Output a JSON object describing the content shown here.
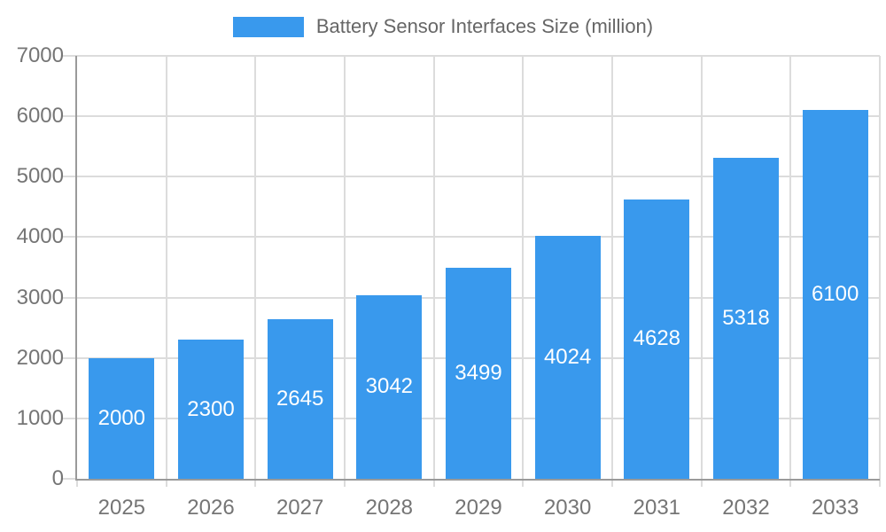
{
  "legend": {
    "label": "Battery Sensor Interfaces Size (million)"
  },
  "chart_data": {
    "type": "bar",
    "title": "Battery Sensor Interfaces Size (million)",
    "categories": [
      "2025",
      "2026",
      "2027",
      "2028",
      "2029",
      "2030",
      "2031",
      "2032",
      "2033"
    ],
    "values": [
      2000,
      2300,
      2645,
      3042,
      3499,
      4024,
      4628,
      5318,
      6100
    ],
    "series": [
      {
        "name": "Battery Sensor Interfaces Size (million)",
        "values": [
          2000,
          2300,
          2645,
          3042,
          3499,
          4024,
          4628,
          5318,
          6100
        ]
      }
    ],
    "xlabel": "",
    "ylabel": "",
    "ylim": [
      0,
      7000
    ],
    "yticks": [
      0,
      1000,
      2000,
      3000,
      4000,
      5000,
      6000,
      7000
    ],
    "grid": true,
    "legend_position": "top",
    "bar_color": "#3999ed",
    "value_label_color": "#ffffff"
  },
  "colors": {
    "background": "#ffffff",
    "axis": "#9a9a9a",
    "grid": "#dcdcdc",
    "tick_label": "#757575",
    "legend_text": "#666666"
  }
}
